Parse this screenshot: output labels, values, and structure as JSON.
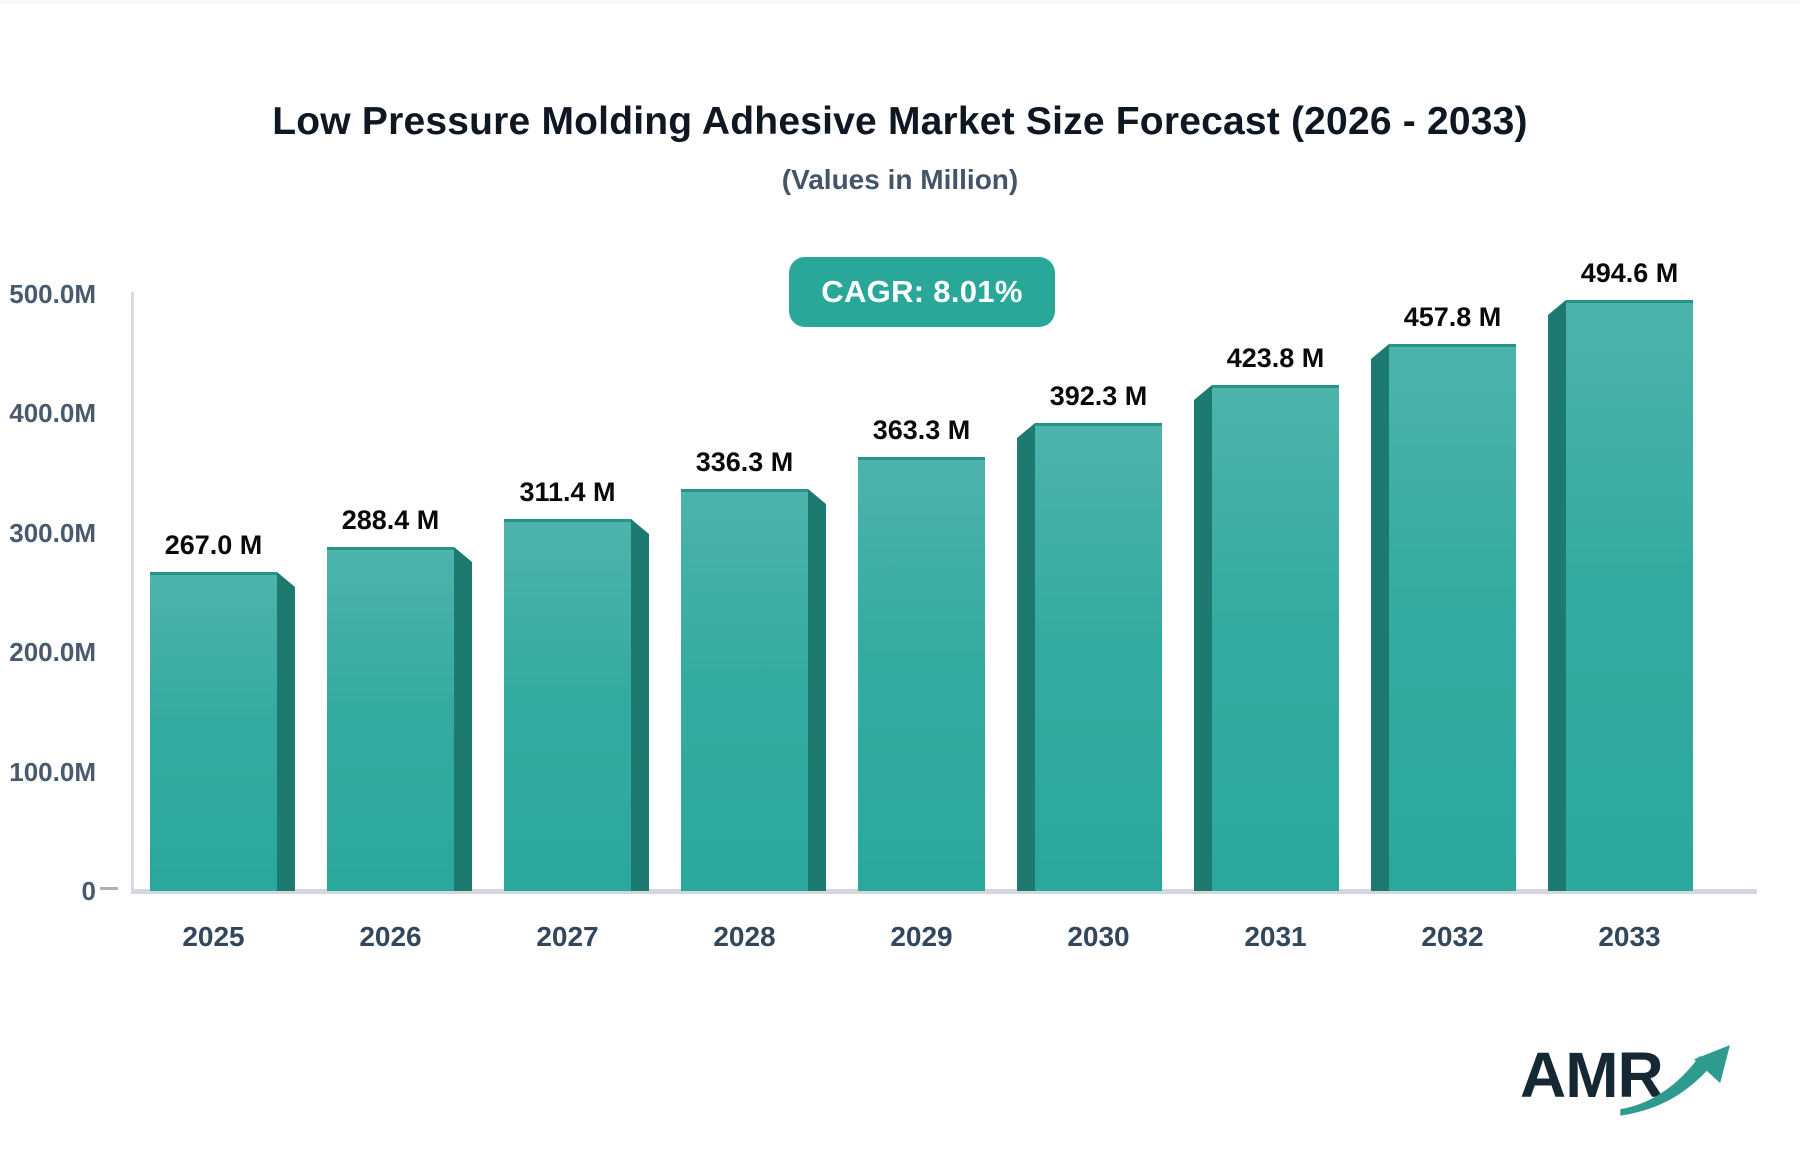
{
  "header": {
    "title": "Low Pressure Molding Adhesive Market Size Forecast (2026 - 2033)",
    "subtitle": "(Values in Million)"
  },
  "badge": {
    "label": "CAGR: 8.01%",
    "bg_color": "#29a89a"
  },
  "chart_data": {
    "type": "bar",
    "title": "Low Pressure Molding Adhesive Market Size Forecast (2026 - 2033)",
    "subtitle": "(Values in Million)",
    "cagr": "8.01%",
    "categories": [
      "2025",
      "2026",
      "2027",
      "2028",
      "2029",
      "2030",
      "2031",
      "2032",
      "2033"
    ],
    "values": [
      267.0,
      288.4,
      311.4,
      336.3,
      363.3,
      392.3,
      423.8,
      457.8,
      494.6
    ],
    "value_labels": [
      "267.0 M",
      "288.4 M",
      "311.4 M",
      "336.3 M",
      "363.3 M",
      "392.3 M",
      "423.8 M",
      "457.8 M",
      "494.6 M"
    ],
    "xlabel": "",
    "ylabel": "",
    "ylim": [
      0,
      500
    ],
    "grid": false,
    "legend": "none",
    "yticks": [
      {
        "value": 500,
        "label": "500.0M"
      },
      {
        "value": 400,
        "label": "400.0M"
      },
      {
        "value": 300,
        "label": "300.0M"
      },
      {
        "value": 200,
        "label": "200.0M"
      },
      {
        "value": 100,
        "label": "100.0M"
      },
      {
        "value": 0,
        "label": "0"
      }
    ],
    "colors": {
      "bar_top": "#4db3ab",
      "bar_bottom": "#2aa89c",
      "bar_side": "#1d7a70",
      "bar_top_edge": "#27948a",
      "axis_line": "#d3d7de",
      "tick_text": "#4a5a6e",
      "category_text": "#33475c",
      "value_text": "#0a0a0a"
    }
  },
  "logo": {
    "text": "AMR",
    "text_color": "#152833",
    "arrow_color": "#2f9a8f"
  }
}
